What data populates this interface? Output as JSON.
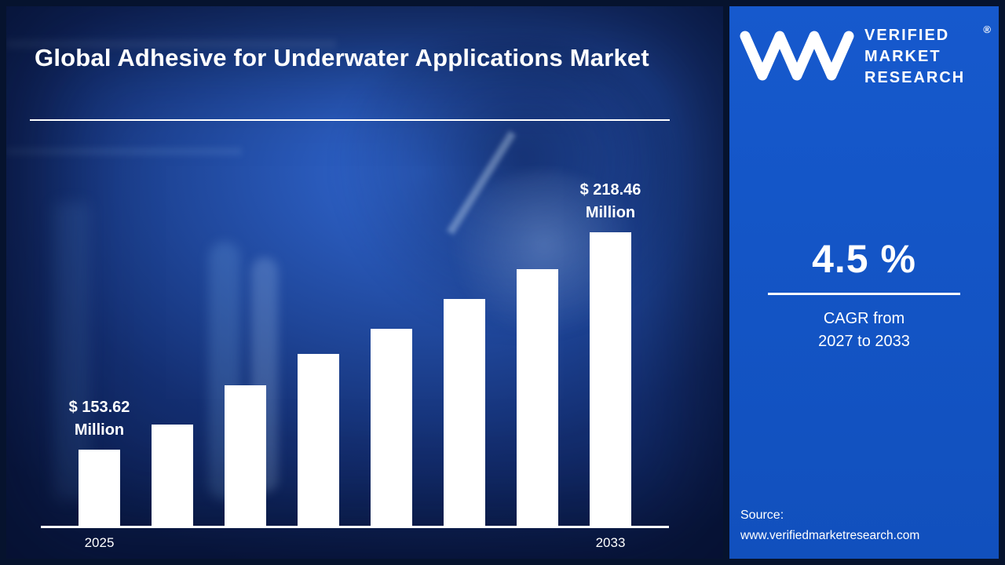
{
  "page": {
    "title": "Global Adhesive for Underwater Applications Market"
  },
  "brand": {
    "name_lines": [
      "VERIFIED",
      "MARKET",
      "RESEARCH"
    ],
    "registered": "®",
    "logo": "vmr-monogram"
  },
  "cagr": {
    "value": "4.5 %",
    "line1": "CAGR from",
    "line2": "2027 to 2033"
  },
  "source": {
    "label": "Source:",
    "url": "www.verifiedmarketresearch.com"
  },
  "colors": {
    "panel_blue": "#1355c8",
    "background_navy": "#0c1f51",
    "frame_navy": "#06132e",
    "bar_color": "#ffffff",
    "text_color": "#ffffff"
  },
  "chart_data": {
    "type": "bar",
    "title": "Global Adhesive for Underwater Applications Market",
    "unit": "USD Million",
    "categories": [
      "2025",
      "",
      "",
      "",
      "",
      "",
      "",
      "2033"
    ],
    "values": [
      153.62,
      161.1,
      172.8,
      182.2,
      189.7,
      198.6,
      207.4,
      218.46
    ],
    "xlabel": "",
    "ylabel": "",
    "y_axis_visible": false,
    "grid": false,
    "legend": false,
    "bar_color": "#ffffff",
    "visible_x_tick_labels": [
      "2025",
      "2033"
    ],
    "annotations": [
      {
        "bar_index": 0,
        "value_label": "$ 153.62",
        "unit_label": "Million"
      },
      {
        "bar_index": 7,
        "value_label": "$ 218.46",
        "unit_label": "Million"
      }
    ]
  }
}
